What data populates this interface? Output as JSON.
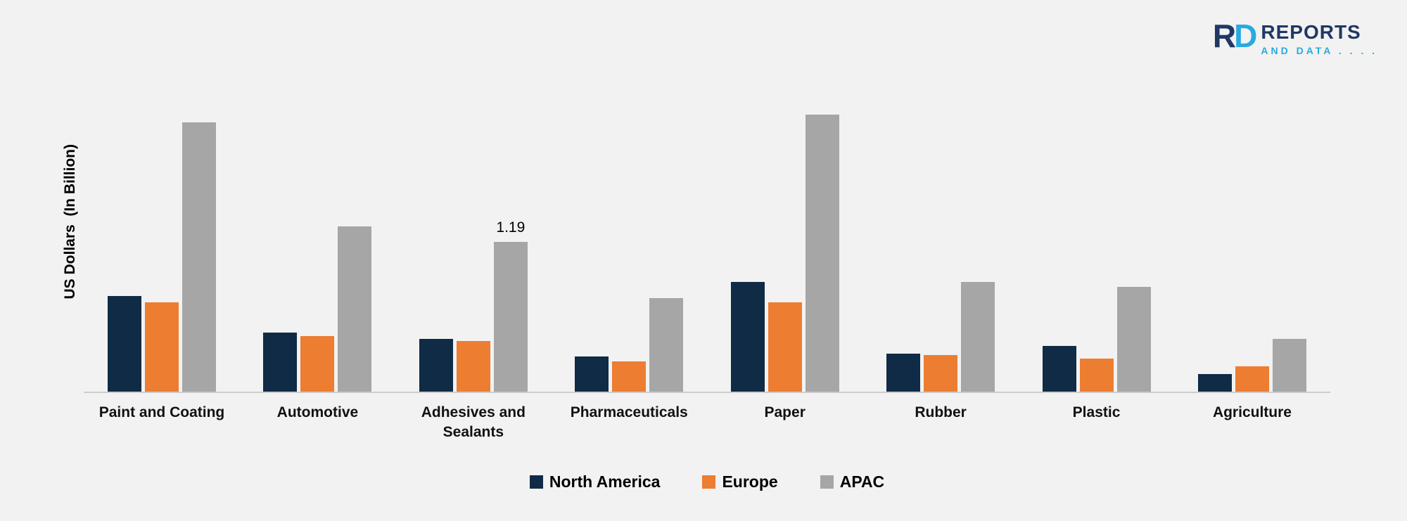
{
  "logo": {
    "mark_r": "R",
    "mark_d": "D",
    "line1": "REPORTS",
    "line2": "AND DATA . . . .",
    "navy": "#1f3864",
    "blue": "#27aae1"
  },
  "chart_data": {
    "type": "bar",
    "title": "",
    "xlabel": "",
    "ylabel": "US Dollars  (In Billion)",
    "ylim": [
      0,
      2.4
    ],
    "grid": false,
    "legend_position": "bottom",
    "background": "#f2f2f2",
    "axis_line_color": "#cccccc",
    "categories": [
      "Paint and Coating",
      "Automotive",
      "Adhesives and\nSealants",
      "Pharmaceuticals",
      "Paper",
      "Rubber",
      "Plastic",
      "Agriculture"
    ],
    "series": [
      {
        "name": "North America",
        "color": "#0f2b46",
        "values": [
          0.76,
          0.47,
          0.42,
          0.28,
          0.87,
          0.3,
          0.36,
          0.14
        ]
      },
      {
        "name": "Europe",
        "color": "#ed7d31",
        "values": [
          0.71,
          0.44,
          0.4,
          0.24,
          0.71,
          0.29,
          0.26,
          0.2
        ]
      },
      {
        "name": "APAC",
        "color": "#a6a6a6",
        "values": [
          2.14,
          1.31,
          1.19,
          0.74,
          2.2,
          0.87,
          0.83,
          0.42
        ]
      }
    ],
    "annotations": [
      {
        "category_index": 2,
        "series_index": 2,
        "text": "1.19"
      }
    ]
  }
}
